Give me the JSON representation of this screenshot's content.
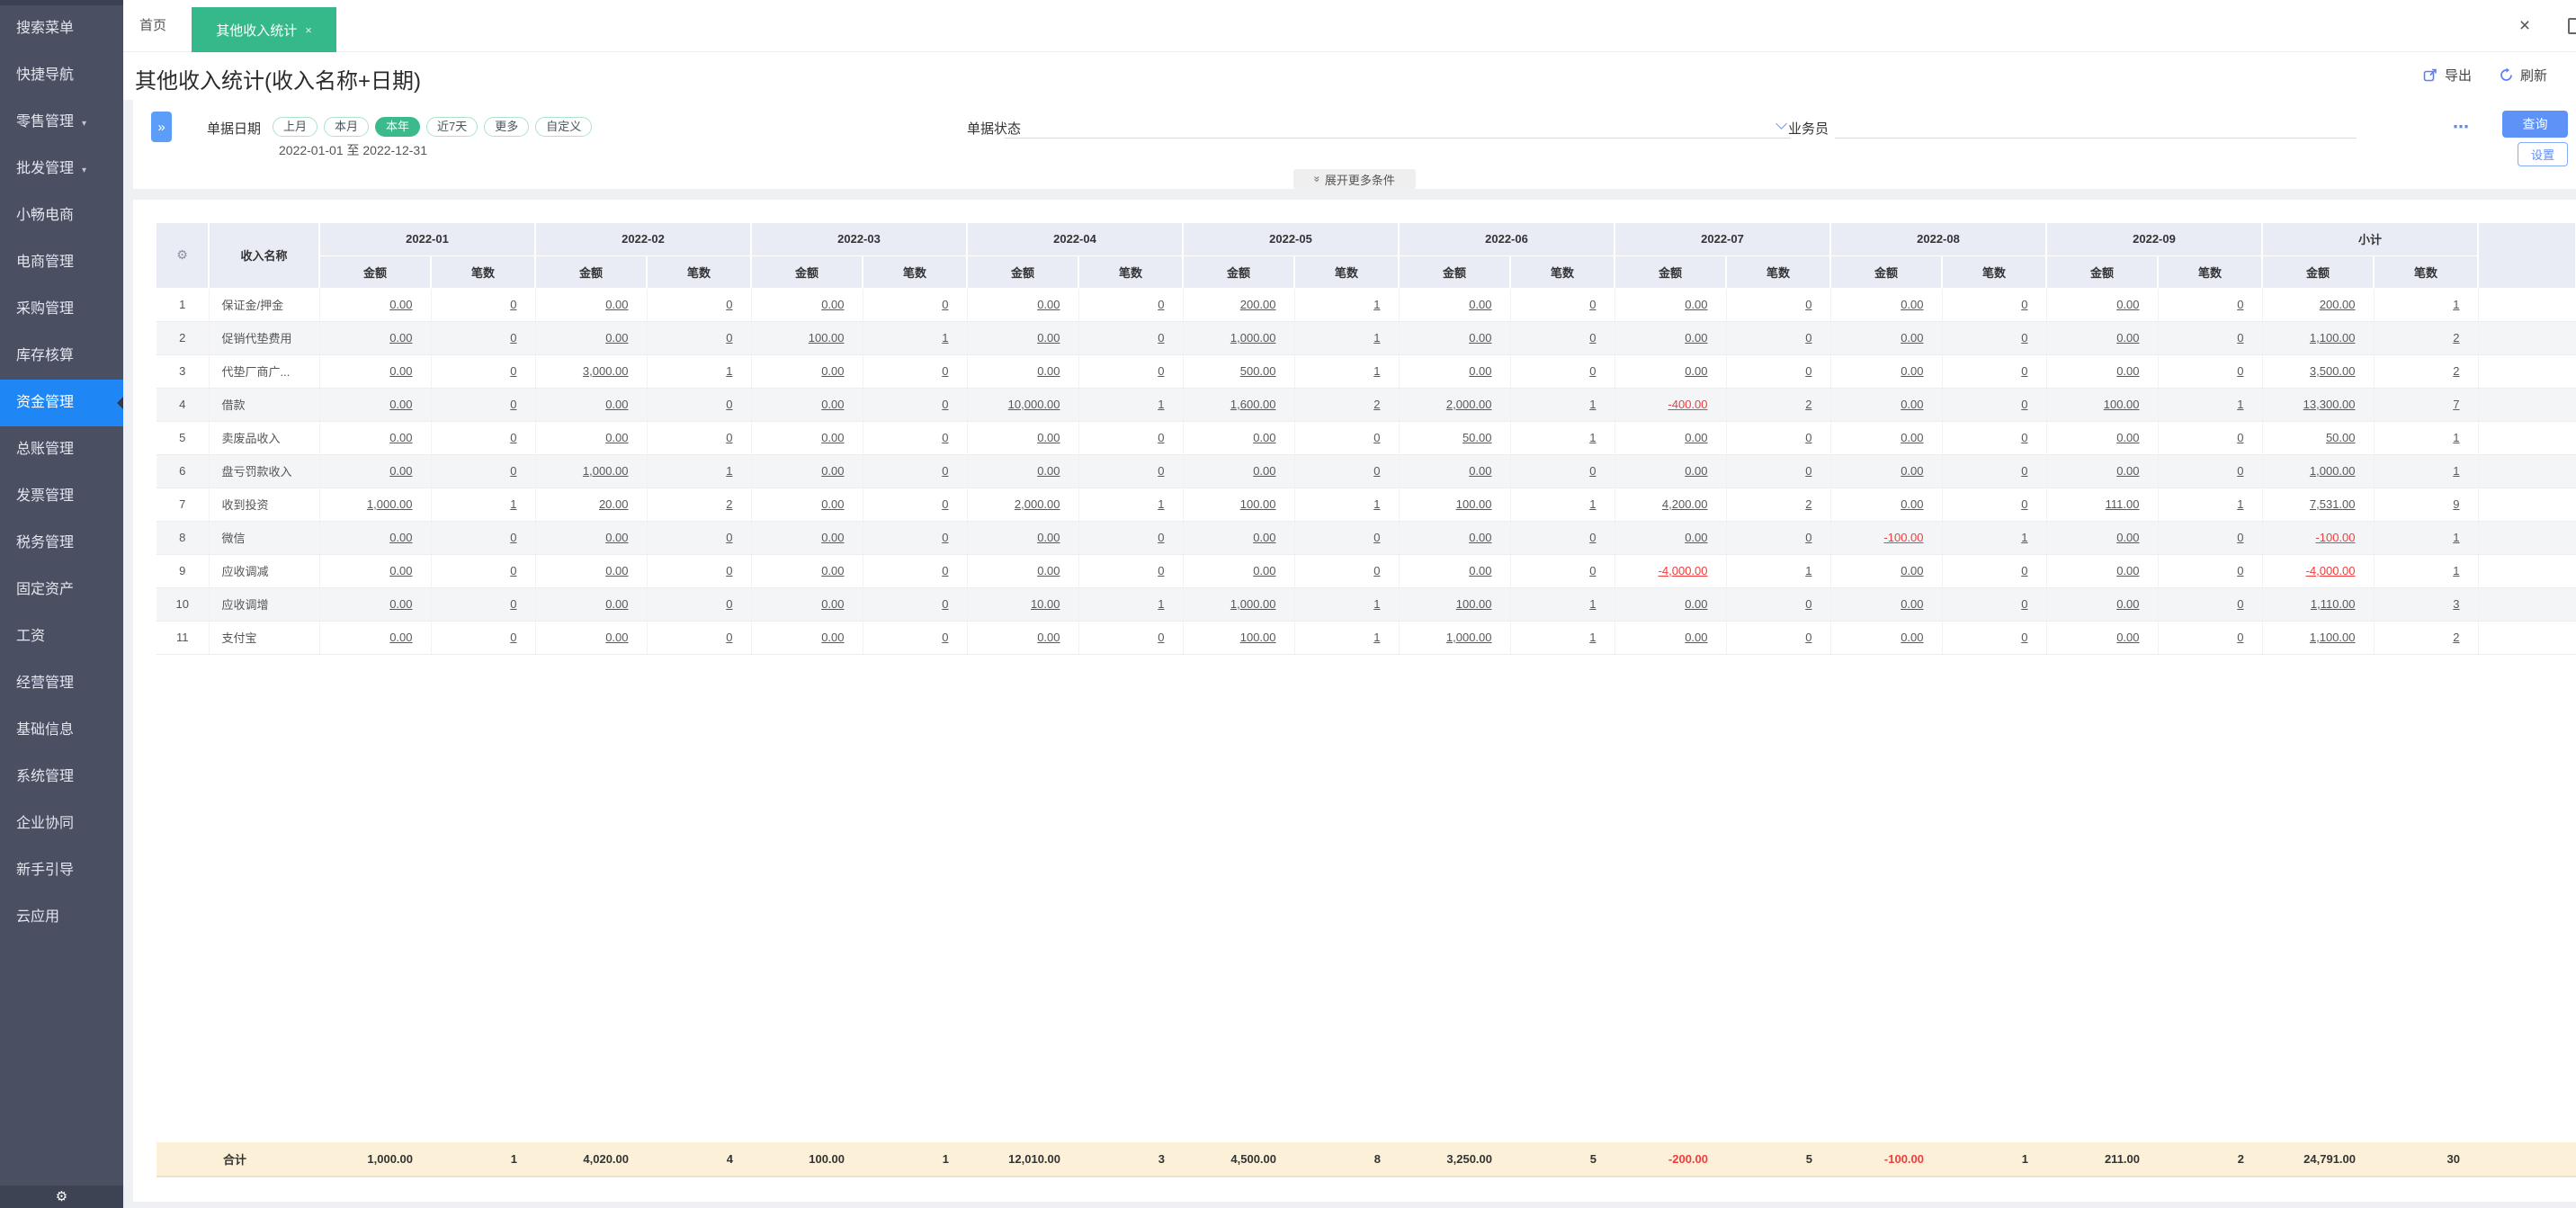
{
  "window": {
    "close_label": "×"
  },
  "sidebar": {
    "items": [
      {
        "label": "搜索菜单"
      },
      {
        "label": "快捷导航"
      },
      {
        "label": "零售管理",
        "caret": true
      },
      {
        "label": "批发管理",
        "caret": true
      },
      {
        "label": "小畅电商"
      },
      {
        "label": "电商管理"
      },
      {
        "label": "采购管理"
      },
      {
        "label": "库存核算"
      },
      {
        "label": "资金管理",
        "active": true
      },
      {
        "label": "总账管理"
      },
      {
        "label": "发票管理"
      },
      {
        "label": "税务管理"
      },
      {
        "label": "固定资产"
      },
      {
        "label": "工资"
      },
      {
        "label": "经营管理"
      },
      {
        "label": "基础信息"
      },
      {
        "label": "系统管理"
      },
      {
        "label": "企业协同"
      },
      {
        "label": "新手引导"
      },
      {
        "label": "云应用"
      }
    ],
    "footer": {
      "settings_icon": "⚙"
    }
  },
  "tabs": {
    "home_label": "首页",
    "active_label": "其他收入统计",
    "close_label": "×"
  },
  "page": {
    "title": "其他收入统计(收入名称+日期)",
    "export_label": "导出",
    "refresh_label": "刷新"
  },
  "filters": {
    "date_label": "单据日期",
    "date_pills": [
      "上月",
      "本月",
      "本年",
      "近7天",
      "更多",
      "自定义"
    ],
    "active_pill_index": 2,
    "date_range": "2022-01-01 至 2022-12-31",
    "status_label": "单据状态",
    "salesman_label": "业务员",
    "more_dots": "⋯",
    "query_label": "查询",
    "settings_label": "设置",
    "expand_label": "展开更多条件",
    "expand_icon": "»",
    "collapse_icon": "»"
  },
  "table": {
    "settings_icon": "⚙",
    "name_header": "收入名称",
    "amount_header": "金额",
    "count_header": "笔数",
    "month_headers": [
      "2022-01",
      "2022-02",
      "2022-03",
      "2022-04",
      "2022-05",
      "2022-06",
      "2022-07",
      "2022-08",
      "2022-09",
      "小计"
    ],
    "rows": [
      {
        "no": "1",
        "name": "保证金/押金",
        "cells": [
          [
            "0.00",
            "0"
          ],
          [
            "0.00",
            "0"
          ],
          [
            "0.00",
            "0"
          ],
          [
            "0.00",
            "0"
          ],
          [
            "200.00",
            "1"
          ],
          [
            "0.00",
            "0"
          ],
          [
            "0.00",
            "0"
          ],
          [
            "0.00",
            "0"
          ],
          [
            "0.00",
            "0"
          ],
          [
            "200.00",
            "1"
          ]
        ]
      },
      {
        "no": "2",
        "name": "促销代垫费用",
        "cells": [
          [
            "0.00",
            "0"
          ],
          [
            "0.00",
            "0"
          ],
          [
            "100.00",
            "1"
          ],
          [
            "0.00",
            "0"
          ],
          [
            "1,000.00",
            "1"
          ],
          [
            "0.00",
            "0"
          ],
          [
            "0.00",
            "0"
          ],
          [
            "0.00",
            "0"
          ],
          [
            "0.00",
            "0"
          ],
          [
            "1,100.00",
            "2"
          ]
        ]
      },
      {
        "no": "3",
        "name": "代垫厂商广...",
        "cells": [
          [
            "0.00",
            "0"
          ],
          [
            "3,000.00",
            "1"
          ],
          [
            "0.00",
            "0"
          ],
          [
            "0.00",
            "0"
          ],
          [
            "500.00",
            "1"
          ],
          [
            "0.00",
            "0"
          ],
          [
            "0.00",
            "0"
          ],
          [
            "0.00",
            "0"
          ],
          [
            "0.00",
            "0"
          ],
          [
            "3,500.00",
            "2"
          ]
        ]
      },
      {
        "no": "4",
        "name": "借款",
        "cells": [
          [
            "0.00",
            "0"
          ],
          [
            "0.00",
            "0"
          ],
          [
            "0.00",
            "0"
          ],
          [
            "10,000.00",
            "1"
          ],
          [
            "1,600.00",
            "2"
          ],
          [
            "2,000.00",
            "1"
          ],
          [
            "-400.00",
            "2"
          ],
          [
            "0.00",
            "0"
          ],
          [
            "100.00",
            "1"
          ],
          [
            "13,300.00",
            "7"
          ]
        ]
      },
      {
        "no": "5",
        "name": "卖废品收入",
        "cells": [
          [
            "0.00",
            "0"
          ],
          [
            "0.00",
            "0"
          ],
          [
            "0.00",
            "0"
          ],
          [
            "0.00",
            "0"
          ],
          [
            "0.00",
            "0"
          ],
          [
            "50.00",
            "1"
          ],
          [
            "0.00",
            "0"
          ],
          [
            "0.00",
            "0"
          ],
          [
            "0.00",
            "0"
          ],
          [
            "50.00",
            "1"
          ]
        ]
      },
      {
        "no": "6",
        "name": "盘亏罚款收入",
        "cells": [
          [
            "0.00",
            "0"
          ],
          [
            "1,000.00",
            "1"
          ],
          [
            "0.00",
            "0"
          ],
          [
            "0.00",
            "0"
          ],
          [
            "0.00",
            "0"
          ],
          [
            "0.00",
            "0"
          ],
          [
            "0.00",
            "0"
          ],
          [
            "0.00",
            "0"
          ],
          [
            "0.00",
            "0"
          ],
          [
            "1,000.00",
            "1"
          ]
        ]
      },
      {
        "no": "7",
        "name": "收到投资",
        "cells": [
          [
            "1,000.00",
            "1"
          ],
          [
            "20.00",
            "2"
          ],
          [
            "0.00",
            "0"
          ],
          [
            "2,000.00",
            "1"
          ],
          [
            "100.00",
            "1"
          ],
          [
            "100.00",
            "1"
          ],
          [
            "4,200.00",
            "2"
          ],
          [
            "0.00",
            "0"
          ],
          [
            "111.00",
            "1"
          ],
          [
            "7,531.00",
            "9"
          ]
        ]
      },
      {
        "no": "8",
        "name": "微信",
        "cells": [
          [
            "0.00",
            "0"
          ],
          [
            "0.00",
            "0"
          ],
          [
            "0.00",
            "0"
          ],
          [
            "0.00",
            "0"
          ],
          [
            "0.00",
            "0"
          ],
          [
            "0.00",
            "0"
          ],
          [
            "0.00",
            "0"
          ],
          [
            "-100.00",
            "1"
          ],
          [
            "0.00",
            "0"
          ],
          [
            "-100.00",
            "1"
          ]
        ]
      },
      {
        "no": "9",
        "name": "应收调减",
        "cells": [
          [
            "0.00",
            "0"
          ],
          [
            "0.00",
            "0"
          ],
          [
            "0.00",
            "0"
          ],
          [
            "0.00",
            "0"
          ],
          [
            "0.00",
            "0"
          ],
          [
            "0.00",
            "0"
          ],
          [
            "-4,000.00",
            "1"
          ],
          [
            "0.00",
            "0"
          ],
          [
            "0.00",
            "0"
          ],
          [
            "-4,000.00",
            "1"
          ]
        ]
      },
      {
        "no": "10",
        "name": "应收调增",
        "cells": [
          [
            "0.00",
            "0"
          ],
          [
            "0.00",
            "0"
          ],
          [
            "0.00",
            "0"
          ],
          [
            "10.00",
            "1"
          ],
          [
            "1,000.00",
            "1"
          ],
          [
            "100.00",
            "1"
          ],
          [
            "0.00",
            "0"
          ],
          [
            "0.00",
            "0"
          ],
          [
            "0.00",
            "0"
          ],
          [
            "1,110.00",
            "3"
          ]
        ]
      },
      {
        "no": "11",
        "name": "支付宝",
        "cells": [
          [
            "0.00",
            "0"
          ],
          [
            "0.00",
            "0"
          ],
          [
            "0.00",
            "0"
          ],
          [
            "0.00",
            "0"
          ],
          [
            "100.00",
            "1"
          ],
          [
            "1,000.00",
            "1"
          ],
          [
            "0.00",
            "0"
          ],
          [
            "0.00",
            "0"
          ],
          [
            "0.00",
            "0"
          ],
          [
            "1,100.00",
            "2"
          ]
        ]
      }
    ],
    "total": {
      "label": "合计",
      "cells": [
        [
          "1,000.00",
          "1"
        ],
        [
          "4,020.00",
          "4"
        ],
        [
          "100.00",
          "1"
        ],
        [
          "12,010.00",
          "3"
        ],
        [
          "4,500.00",
          "8"
        ],
        [
          "3,250.00",
          "5"
        ],
        [
          "-200.00",
          "5"
        ],
        [
          "-100.00",
          "1"
        ],
        [
          "211.00",
          "2"
        ],
        [
          "24,791.00",
          "30"
        ]
      ]
    }
  },
  "colors": {
    "tab_green": "#36b98a",
    "sidebar_active_blue": "#1f87f5",
    "accent_blue": "#5b8cf8",
    "negative_red": "#f23c3c",
    "header_bg": "#e9ecf5",
    "total_row_bg": "#fcf1d8"
  }
}
